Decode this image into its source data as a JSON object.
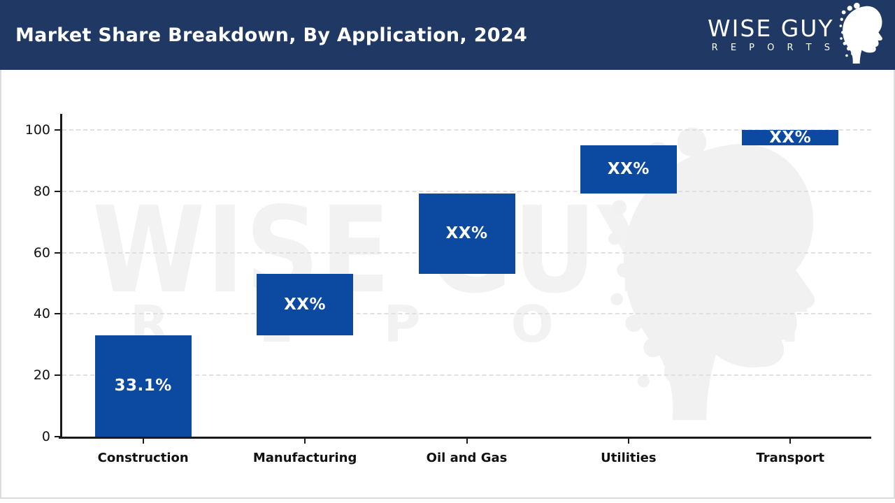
{
  "header": {
    "title": "Market Share Breakdown, By Application, 2024",
    "bg_color": "#1f3864",
    "logo": {
      "name": "WISE GUY",
      "tagline": "R E P O R T S",
      "icon": "wiseguy-face-icon"
    }
  },
  "watermark": {
    "name": "WISE GUY",
    "tagline": "R E P O R T S",
    "icon": "wiseguy-face-watermark-icon",
    "color": "#f2f2f2"
  },
  "chart_data": {
    "type": "bar",
    "subtype": "waterfall",
    "title": "Market Share Breakdown, By Application, 2024",
    "categories": [
      "Construction",
      "Manufacturing",
      "Oil and Gas",
      "Utilities",
      "Transport"
    ],
    "segments": [
      {
        "category": "Construction",
        "start": 0,
        "end": 33.1,
        "label": "33.1%"
      },
      {
        "category": "Manufacturing",
        "start": 33.1,
        "end": 53.1,
        "label": "XX%"
      },
      {
        "category": "Oil and Gas",
        "start": 53.1,
        "end": 79.3,
        "label": "XX%"
      },
      {
        "category": "Utilities",
        "start": 79.3,
        "end": 95.0,
        "label": "XX%"
      },
      {
        "category": "Transport",
        "start": 95.0,
        "end": 100.0,
        "label": "XX%"
      }
    ],
    "xlabel": "",
    "ylabel": "",
    "yticks": [
      0,
      20,
      40,
      60,
      80,
      100
    ],
    "ylim": [
      0,
      107
    ],
    "grid": "horizontal-dashed",
    "legend": "none",
    "colors": {
      "bar": "#0c4aa2",
      "bar_label": "#ffffff",
      "grid": "#e0e0e0",
      "axis": "#1a1a1a",
      "tick_label": "#111111",
      "header_bg": "#1f3864",
      "header_text": "#ffffff",
      "watermark": "#f2f2f2"
    }
  }
}
